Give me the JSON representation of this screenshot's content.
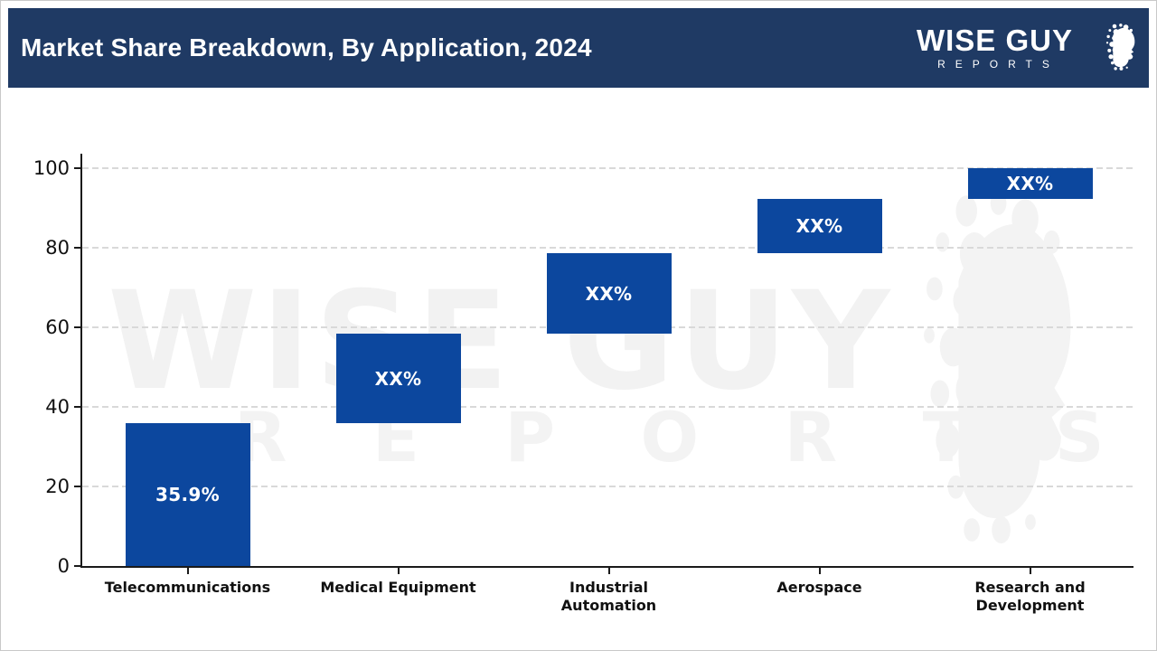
{
  "header": {
    "title": "Market Share Breakdown, By Application, 2024",
    "bg_color": "#1f3a64",
    "logo": {
      "line1": "WISE GUY",
      "line2": "REPORTS"
    }
  },
  "watermark": {
    "line1": "WISE GUY",
    "line2": "R E P O R T S"
  },
  "chart_data": {
    "type": "bar",
    "subtype": "waterfall",
    "title": "Market Share Breakdown, By Application, 2024",
    "categories": [
      "Telecommunications",
      "Medical Equipment",
      "Industrial Automation",
      "Aerospace",
      "Research and Development"
    ],
    "category_label_lines": [
      [
        "Telecommunications"
      ],
      [
        "Medical Equipment"
      ],
      [
        "Industrial",
        "Automation"
      ],
      [
        "Aerospace"
      ],
      [
        "Research and",
        "Development"
      ]
    ],
    "segments": [
      {
        "category": "Telecommunications",
        "start": 0,
        "end": 35.9,
        "label": "35.9%"
      },
      {
        "category": "Medical Equipment",
        "start": 35.9,
        "end": 58.4,
        "label": "XX%"
      },
      {
        "category": "Industrial Automation",
        "start": 58.4,
        "end": 78.6,
        "label": "XX%"
      },
      {
        "category": "Aerospace",
        "start": 78.6,
        "end": 92.3,
        "label": "XX%"
      },
      {
        "category": "Research and Development",
        "start": 92.3,
        "end": 100,
        "label": "XX%"
      }
    ],
    "ylim": [
      0,
      100
    ],
    "yticks": [
      0,
      20,
      40,
      60,
      80,
      100
    ],
    "grid": "horizontal-dashed",
    "legend": "none",
    "bar_color": "#0c479e",
    "bar_label_color": "#ffffff",
    "axis_color": "#1a1a1a",
    "header_bg_color": "#1f3a64"
  }
}
